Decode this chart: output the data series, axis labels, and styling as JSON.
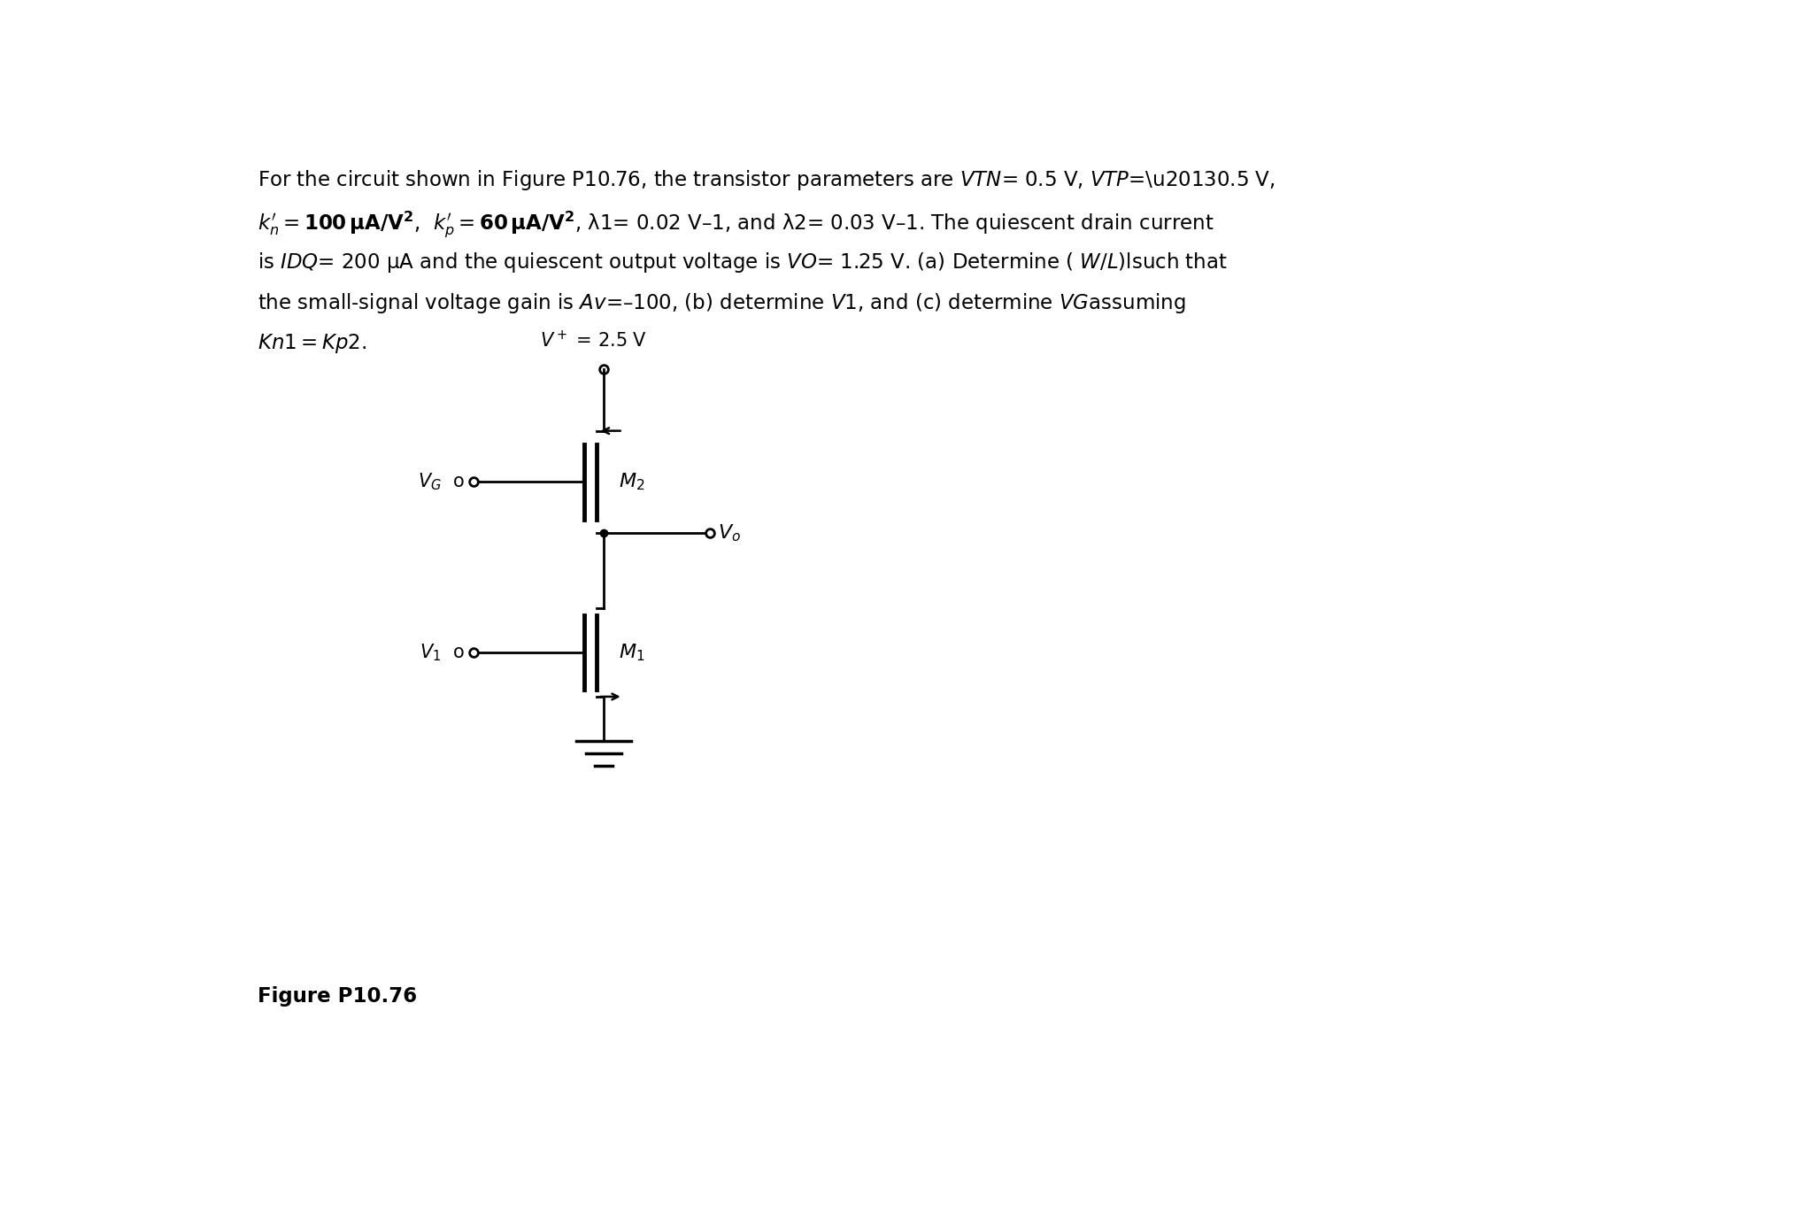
{
  "bg_color": "#ffffff",
  "text_color": "#000000",
  "line_color": "#000000",
  "fig_width": 20.46,
  "fig_height": 13.86,
  "figure_label": "Figure P10.76"
}
